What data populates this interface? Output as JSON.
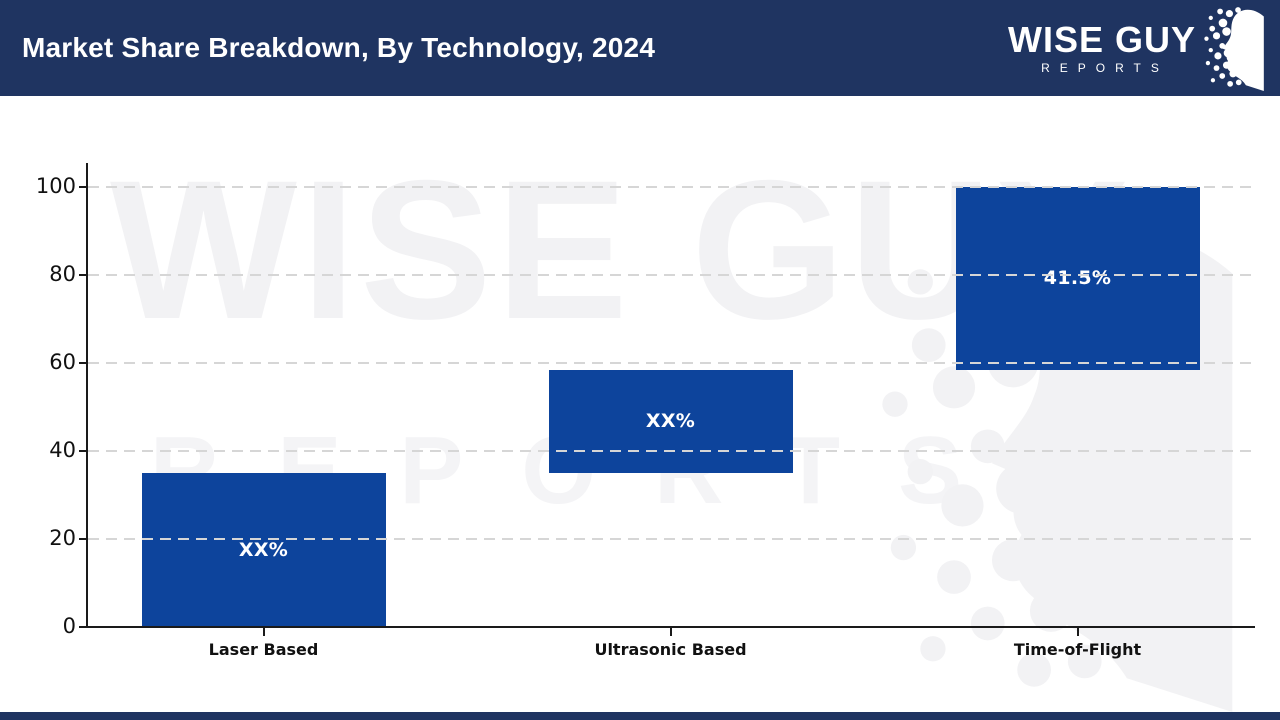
{
  "header": {
    "title": "Market Share Breakdown, By Technology, 2024",
    "brand_line1": "WISE GUY",
    "brand_line2": "REPORTS"
  },
  "watermark": {
    "line1": "WISE GUY",
    "line2": "REPORTS"
  },
  "chart_data": {
    "type": "bar",
    "subtype": "floating-waterfall",
    "title": "Market Share Breakdown, By Technology, 2024",
    "categories": [
      "Laser Based",
      "Ultrasonic Based",
      "Time-of-Flight"
    ],
    "series": [
      {
        "name": "Market share (%)",
        "segments": [
          {
            "category": "Laser Based",
            "start": 0,
            "end": 35,
            "label": "XX%"
          },
          {
            "category": "Ultrasonic Based",
            "start": 35,
            "end": 58.5,
            "label": "XX%"
          },
          {
            "category": "Time-of-Flight",
            "start": 58.5,
            "end": 100,
            "label": "41.5%"
          }
        ]
      }
    ],
    "ylim": [
      0,
      105.5
    ],
    "yticks": [
      0,
      20,
      40,
      60,
      80,
      100
    ],
    "grid": "horizontal-dashed",
    "legend": "none",
    "bar_color": "#0d449c",
    "label_color": "#ffffff"
  },
  "colors": {
    "header_bg": "#1f3461",
    "footer_bg": "#1f3461",
    "bar": "#0d449c",
    "grid": "#d6d6d6",
    "axis": "#1a1a1a",
    "watermark": "#f2f2f4"
  }
}
